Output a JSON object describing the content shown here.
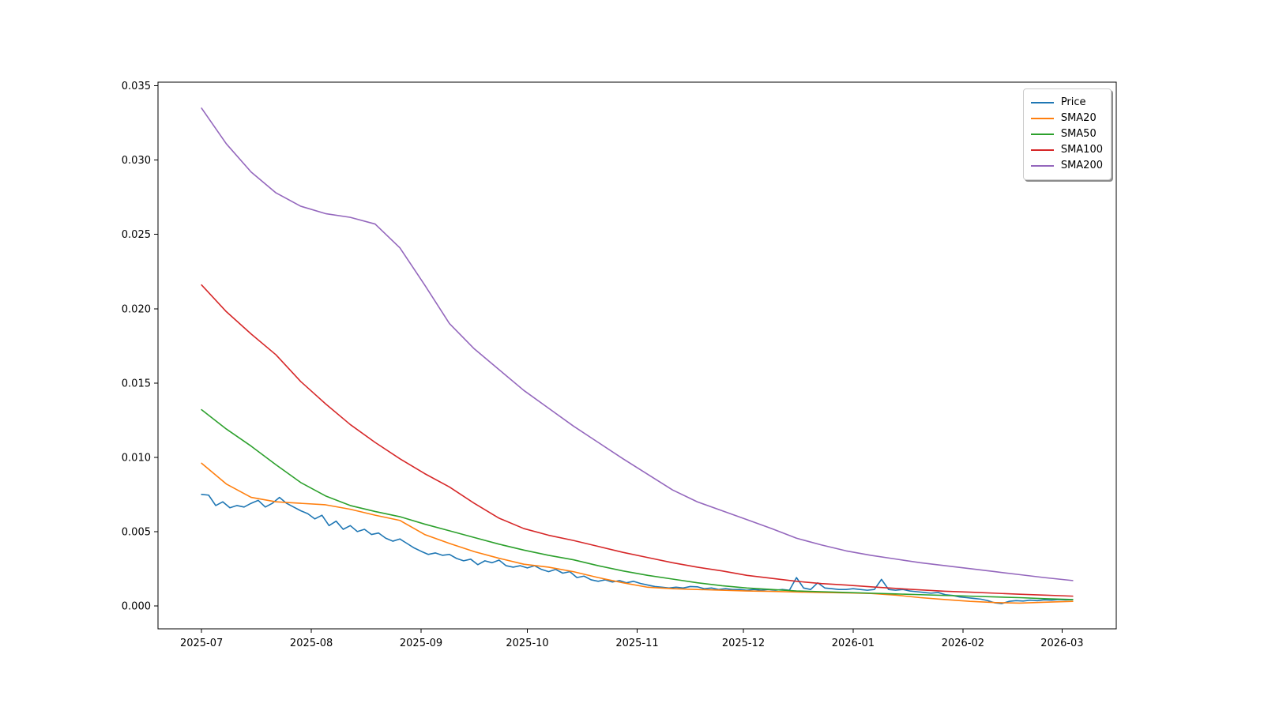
{
  "figure": {
    "background": "#ffffff"
  },
  "chart_data": {
    "type": "line",
    "title": "",
    "xlabel": "",
    "ylabel": "",
    "grid": false,
    "x_unit": "days since 2025-07-01",
    "xlim": [
      -12.3,
      258.3
    ],
    "ylim": [
      -0.00155,
      0.03525
    ],
    "x_ticks": {
      "labels": [
        "2025-07",
        "2025-08",
        "2025-09",
        "2025-10",
        "2025-11",
        "2025-12",
        "2026-01",
        "2026-02",
        "2026-03"
      ],
      "days": [
        0,
        31,
        62,
        92,
        123,
        153,
        184,
        215,
        243
      ]
    },
    "y_ticks": {
      "labels": [
        "0.000",
        "0.005",
        "0.010",
        "0.015",
        "0.020",
        "0.025",
        "0.030",
        "0.035"
      ],
      "values": [
        0,
        0.005,
        0.01,
        0.015,
        0.02,
        0.025,
        0.03,
        0.035
      ]
    },
    "legend": {
      "position": "upper right",
      "entries": [
        "Price",
        "SMA20",
        "SMA50",
        "SMA100",
        "SMA200"
      ]
    },
    "series": [
      {
        "name": "Price",
        "color": "#1f77b4",
        "line_width": 1.6,
        "x": [
          0,
          2,
          4,
          6,
          8,
          10,
          12,
          14,
          16,
          18,
          20,
          22,
          24,
          26,
          28,
          30,
          32,
          34,
          36,
          38,
          40,
          42,
          44,
          46,
          48,
          50,
          52,
          54,
          56,
          58,
          60,
          62,
          64,
          66,
          68,
          70,
          72,
          74,
          76,
          78,
          80,
          82,
          84,
          86,
          88,
          90,
          92,
          94,
          96,
          98,
          100,
          102,
          104,
          106,
          108,
          110,
          112,
          114,
          116,
          118,
          120,
          122,
          124,
          126,
          128,
          130,
          132,
          134,
          136,
          138,
          140,
          142,
          144,
          146,
          148,
          150,
          152,
          154,
          156,
          158,
          160,
          162,
          164,
          166,
          168,
          170,
          172,
          174,
          176,
          178,
          180,
          182,
          184,
          186,
          188,
          190,
          192,
          194,
          196,
          198,
          200,
          202,
          204,
          206,
          208,
          210,
          212,
          214,
          216,
          218,
          220,
          222,
          224,
          226,
          228,
          230,
          232,
          234,
          236,
          238,
          240,
          242,
          244,
          246
        ],
        "y": [
          0.0075,
          0.00745,
          0.00675,
          0.007,
          0.0066,
          0.00675,
          0.00665,
          0.0069,
          0.0071,
          0.00665,
          0.0069,
          0.0073,
          0.0069,
          0.00665,
          0.0064,
          0.0062,
          0.00585,
          0.0061,
          0.0054,
          0.0057,
          0.00515,
          0.0054,
          0.005,
          0.00515,
          0.0048,
          0.0049,
          0.00455,
          0.00435,
          0.0045,
          0.0042,
          0.0039,
          0.00367,
          0.00346,
          0.00356,
          0.0034,
          0.00346,
          0.00319,
          0.00303,
          0.00314,
          0.00277,
          0.00303,
          0.0029,
          0.00308,
          0.0027,
          0.0026,
          0.0027,
          0.00255,
          0.0027,
          0.00245,
          0.0023,
          0.00245,
          0.0022,
          0.0023,
          0.0019,
          0.002,
          0.00175,
          0.00165,
          0.00175,
          0.0016,
          0.0017,
          0.00155,
          0.00165,
          0.0015,
          0.0014,
          0.0013,
          0.00125,
          0.0012,
          0.00125,
          0.0012,
          0.0013,
          0.00128,
          0.00115,
          0.0012,
          0.0011,
          0.00115,
          0.0011,
          0.0011,
          0.00105,
          0.0011,
          0.00105,
          0.0011,
          0.00105,
          0.0011,
          0.00105,
          0.0019,
          0.0012,
          0.0011,
          0.00155,
          0.0012,
          0.00115,
          0.0011,
          0.0011,
          0.00115,
          0.0011,
          0.00105,
          0.0011,
          0.00178,
          0.0011,
          0.00105,
          0.0011,
          0.001,
          0.00095,
          0.0009,
          0.00085,
          0.0009,
          0.00075,
          0.0007,
          0.0006,
          0.00055,
          0.0005,
          0.00045,
          0.00035,
          0.0002,
          0.00015,
          0.0003,
          0.00035,
          0.00032,
          0.00038,
          0.00035,
          0.0004,
          0.00038,
          0.00042,
          0.0004,
          0.00042
        ]
      },
      {
        "name": "SMA20",
        "color": "#ff7f0e",
        "line_width": 1.6,
        "x": [
          0,
          7,
          14,
          21,
          28,
          35,
          42,
          49,
          56,
          63,
          70,
          77,
          84,
          91,
          98,
          105,
          112,
          119,
          126,
          133,
          140,
          147,
          154,
          161,
          168,
          175,
          182,
          189,
          196,
          203,
          210,
          217,
          224,
          231,
          238,
          246
        ],
        "y": [
          0.0096,
          0.0082,
          0.0073,
          0.007,
          0.0069,
          0.0068,
          0.0065,
          0.0061,
          0.00575,
          0.0048,
          0.0042,
          0.00365,
          0.0032,
          0.0028,
          0.0026,
          0.0023,
          0.0019,
          0.00155,
          0.00125,
          0.00115,
          0.0011,
          0.00105,
          0.001,
          0.00097,
          0.00093,
          0.0009,
          0.00087,
          0.00083,
          0.00072,
          0.00055,
          0.00042,
          0.0003,
          0.00022,
          0.00018,
          0.00024,
          0.0003
        ]
      },
      {
        "name": "SMA50",
        "color": "#2ca02c",
        "line_width": 1.6,
        "x": [
          0,
          7,
          14,
          21,
          28,
          35,
          42,
          49,
          56,
          63,
          70,
          77,
          84,
          91,
          98,
          105,
          112,
          119,
          126,
          133,
          140,
          147,
          154,
          161,
          168,
          175,
          182,
          189,
          196,
          203,
          210,
          217,
          224,
          231,
          238,
          246
        ],
        "y": [
          0.0132,
          0.0119,
          0.01075,
          0.0095,
          0.0083,
          0.0074,
          0.00675,
          0.00635,
          0.006,
          0.0055,
          0.00505,
          0.0046,
          0.00415,
          0.00375,
          0.0034,
          0.0031,
          0.0027,
          0.00235,
          0.00205,
          0.0018,
          0.00155,
          0.00135,
          0.0012,
          0.0011,
          0.001,
          0.00095,
          0.0009,
          0.00085,
          0.0008,
          0.00075,
          0.0007,
          0.00065,
          0.0006,
          0.00055,
          0.00048,
          0.00042
        ]
      },
      {
        "name": "SMA100",
        "color": "#d62728",
        "line_width": 1.6,
        "x": [
          0,
          7,
          14,
          21,
          28,
          35,
          42,
          49,
          56,
          63,
          70,
          77,
          84,
          91,
          98,
          105,
          112,
          119,
          126,
          133,
          140,
          147,
          154,
          161,
          168,
          175,
          182,
          189,
          196,
          203,
          210,
          217,
          224,
          231,
          238,
          246
        ],
        "y": [
          0.0216,
          0.0198,
          0.0183,
          0.0169,
          0.0151,
          0.0136,
          0.0122,
          0.011,
          0.0099,
          0.0089,
          0.008,
          0.0069,
          0.0059,
          0.0052,
          0.00475,
          0.0044,
          0.004,
          0.0036,
          0.00325,
          0.0029,
          0.0026,
          0.00235,
          0.00205,
          0.00185,
          0.00165,
          0.0015,
          0.0014,
          0.00128,
          0.00117,
          0.00107,
          0.00098,
          0.00092,
          0.00085,
          0.00078,
          0.00072,
          0.00065
        ]
      },
      {
        "name": "SMA200",
        "color": "#9467bd",
        "line_width": 1.6,
        "x": [
          0,
          7,
          14,
          21,
          28,
          35,
          42,
          49,
          56,
          63,
          70,
          77,
          84,
          91,
          98,
          105,
          112,
          119,
          126,
          133,
          140,
          147,
          154,
          161,
          168,
          175,
          182,
          189,
          196,
          203,
          210,
          217,
          224,
          231,
          238,
          246
        ],
        "y": [
          0.0335,
          0.0311,
          0.0292,
          0.0278,
          0.0269,
          0.0264,
          0.02615,
          0.0257,
          0.0241,
          0.0216,
          0.019,
          0.0173,
          0.0159,
          0.0145,
          0.0133,
          0.0121,
          0.011,
          0.0099,
          0.00885,
          0.0078,
          0.007,
          0.0064,
          0.0058,
          0.0052,
          0.00455,
          0.0041,
          0.0037,
          0.0034,
          0.00315,
          0.0029,
          0.0027,
          0.0025,
          0.0023,
          0.0021,
          0.0019,
          0.0017
        ]
      }
    ]
  }
}
